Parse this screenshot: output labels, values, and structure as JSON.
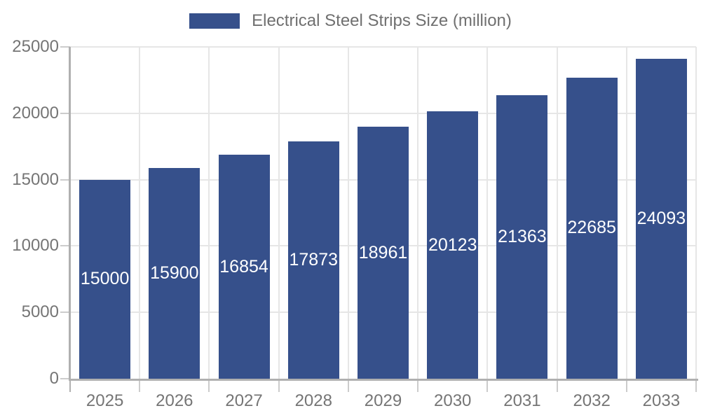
{
  "legend": {
    "label": "Electrical Steel Strips Size (million)"
  },
  "chart_data": {
    "type": "bar",
    "title": "",
    "xlabel": "",
    "ylabel": "",
    "categories": [
      "2025",
      "2026",
      "2027",
      "2028",
      "2029",
      "2030",
      "2031",
      "2032",
      "2033"
    ],
    "series": [
      {
        "name": "Electrical Steel Strips Size (million)",
        "values": [
          15000,
          15900,
          16854,
          17873,
          18961,
          20123,
          21363,
          22685,
          24093
        ]
      }
    ],
    "ylim": [
      0,
      25000
    ],
    "yticks": [
      0,
      5000,
      10000,
      15000,
      20000,
      25000
    ],
    "grid": true,
    "legend_position": "top-center",
    "bar_label_position": "inside-center"
  },
  "palette": {
    "bar": "#36508B",
    "bar_value_label": "#FFFFFF",
    "axis_line": "#B0B0B0",
    "tick": "#CCCCCC",
    "gridline": "#E6E6E6",
    "axis_label_text": "#757575",
    "legend_text": "#707070",
    "background": "#FFFFFF"
  }
}
